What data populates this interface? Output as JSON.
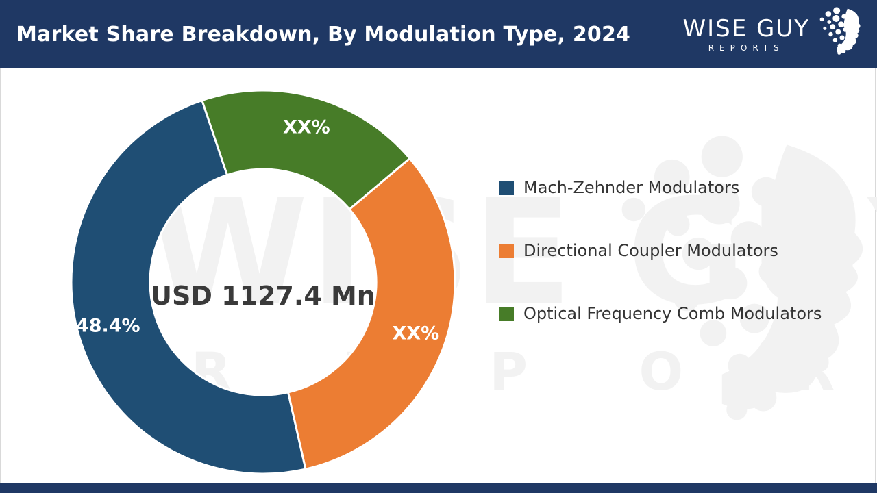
{
  "header": {
    "title": "Market Share Breakdown, By Modulation Type, 2024",
    "logo_line1": "WISE GUY",
    "logo_line2": "REPORTS",
    "bg_color": "#1f3864"
  },
  "chart_data": {
    "type": "pie",
    "subtype": "donut",
    "title": "Market Share Breakdown, By Modulation Type, 2024",
    "year": "2024",
    "center_label": "USD 1127.4 Mn",
    "start_angle_deg": 167.2,
    "draw_order": [
      0,
      2,
      1
    ],
    "segments": [
      {
        "name": "Mach-Zehnder Modulators",
        "color": "#1f4e74",
        "share_pct": 48.4,
        "display_label": "48.4%"
      },
      {
        "name": "Directional Coupler Modulators",
        "color": "#ec7d33",
        "share_pct": 32.6,
        "display_label": "XX%"
      },
      {
        "name": "Optical Frequency Comb Modulators",
        "color": "#477c28",
        "share_pct": 19.0,
        "display_label": "XX%"
      }
    ],
    "legend_position": "right"
  },
  "legend": {
    "items": [
      {
        "label": "Mach-Zehnder Modulators",
        "color": "#1f4e74"
      },
      {
        "label": "Directional Coupler Modulators",
        "color": "#ec7d33"
      },
      {
        "label": "Optical Frequency Comb Modulators",
        "color": "#477c28"
      }
    ]
  },
  "watermark": {
    "line1": "WISE GUY",
    "line2": "R E P O R T S"
  },
  "colors": {
    "header_bg": "#1f3864",
    "footer_bg": "#1f3864",
    "content_border": "#d9d9d9",
    "center_text": "#3a3a3a",
    "legend_text": "#333333",
    "watermark": "#f2f2f2",
    "separator": "#ffffff"
  }
}
